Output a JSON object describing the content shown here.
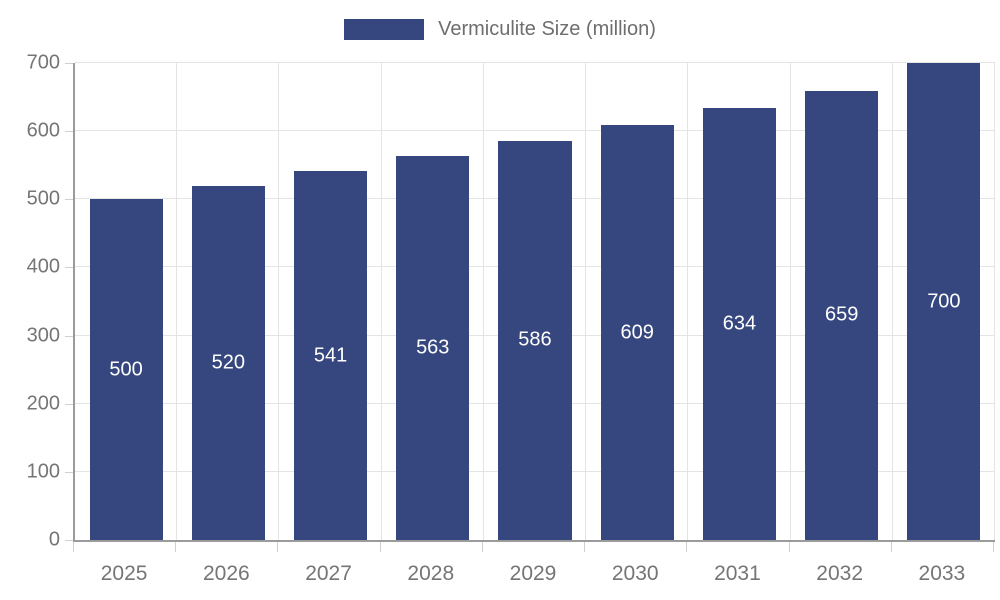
{
  "legend": {
    "label": "Vermiculite Size (million)"
  },
  "colors": {
    "bar": "#36477F",
    "bar_label_text": "#ffffff",
    "axis_line": "#9b9b9b",
    "gridline": "#e4e4e4",
    "tick": "#cfcfcf",
    "tick_label_text": "#757575",
    "legend_text": "#6e6e6e",
    "background": "#ffffff"
  },
  "chart_data": {
    "type": "bar",
    "title": "",
    "xlabel": "",
    "ylabel": "",
    "categories": [
      "2025",
      "2026",
      "2027",
      "2028",
      "2029",
      "2030",
      "2031",
      "2032",
      "2033"
    ],
    "values": [
      500,
      520,
      541,
      563,
      586,
      609,
      634,
      659,
      700
    ],
    "series_name": "Vermiculite Size (million)",
    "value_labels_shown": true,
    "ylim": [
      0,
      700
    ],
    "yticks": [
      0,
      100,
      200,
      300,
      400,
      500,
      600,
      700
    ],
    "grid": true,
    "legend_position": "top"
  }
}
